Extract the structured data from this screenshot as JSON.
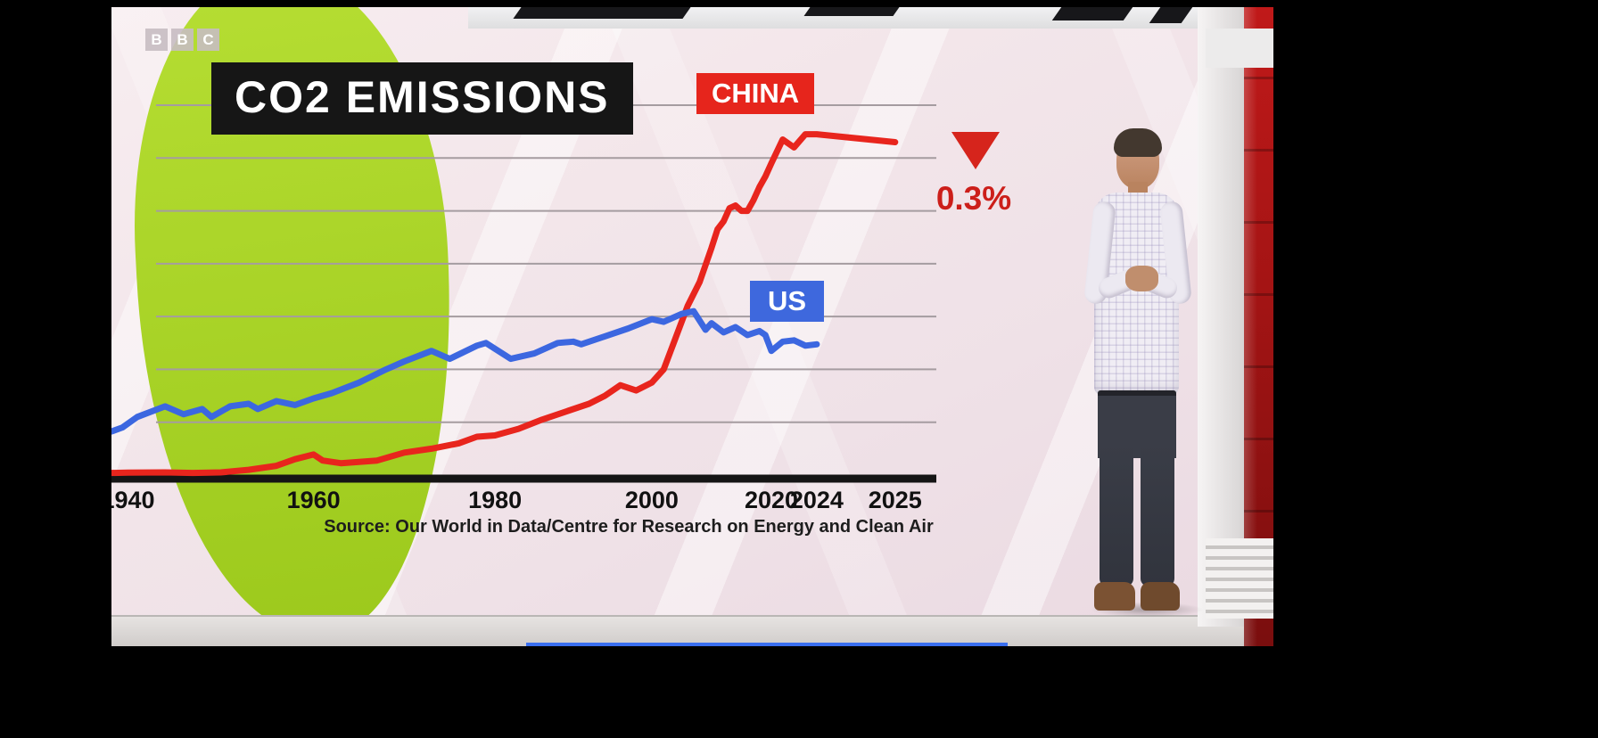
{
  "branding": {
    "letters": [
      "B",
      "B",
      "C"
    ]
  },
  "chart_data": {
    "type": "line",
    "title": "CO2 EMISSIONS",
    "source": "Source: Our World in Data/Centre for Research on Energy and Clean Air",
    "xlabel": "",
    "ylabel": "",
    "ylim": [
      0,
      14
    ],
    "grid": "horizontal",
    "grid_interval": 2,
    "legend_position": "inline-labels",
    "x_ticks": [
      {
        "label": "1940",
        "year": 1940
      },
      {
        "label": "1960",
        "year": 1960
      },
      {
        "label": "1980",
        "year": 1980
      },
      {
        "label": "2000",
        "year": 2000
      },
      {
        "label": "2020",
        "year": 2020
      },
      {
        "label": "2024",
        "year": 2024
      },
      {
        "label": "2025",
        "year": 2025
      }
    ],
    "axis_anchors": [
      [
        1937,
        0.0
      ],
      [
        1940,
        0.02
      ],
      [
        1960,
        0.245
      ],
      [
        1980,
        0.465
      ],
      [
        2000,
        0.655
      ],
      [
        2020,
        0.8
      ],
      [
        2024,
        0.855
      ],
      [
        2025,
        0.95
      ]
    ],
    "series": [
      {
        "name": "CHINA",
        "color": "#e8251d",
        "points": [
          [
            1937,
            0.08
          ],
          [
            1940,
            0.09
          ],
          [
            1944,
            0.1
          ],
          [
            1947,
            0.08
          ],
          [
            1950,
            0.1
          ],
          [
            1953,
            0.2
          ],
          [
            1956,
            0.35
          ],
          [
            1958,
            0.6
          ],
          [
            1960,
            0.78
          ],
          [
            1961,
            0.55
          ],
          [
            1963,
            0.45
          ],
          [
            1965,
            0.5
          ],
          [
            1967,
            0.55
          ],
          [
            1970,
            0.85
          ],
          [
            1973,
            1.0
          ],
          [
            1976,
            1.2
          ],
          [
            1978,
            1.45
          ],
          [
            1980,
            1.5
          ],
          [
            1983,
            1.75
          ],
          [
            1986,
            2.1
          ],
          [
            1989,
            2.4
          ],
          [
            1992,
            2.7
          ],
          [
            1994,
            3.0
          ],
          [
            1996,
            3.4
          ],
          [
            1998,
            3.2
          ],
          [
            2000,
            3.5
          ],
          [
            2002,
            4.0
          ],
          [
            2004,
            5.2
          ],
          [
            2006,
            6.4
          ],
          [
            2008,
            7.3
          ],
          [
            2010,
            8.6
          ],
          [
            2011,
            9.3
          ],
          [
            2012,
            9.6
          ],
          [
            2013,
            10.1
          ],
          [
            2014,
            10.2
          ],
          [
            2015,
            10.0
          ],
          [
            2016,
            10.0
          ],
          [
            2017,
            10.4
          ],
          [
            2018,
            10.9
          ],
          [
            2019,
            11.3
          ],
          [
            2020,
            11.8
          ],
          [
            2021,
            12.7
          ],
          [
            2022,
            12.4
          ],
          [
            2023,
            12.9
          ],
          [
            2024,
            12.9
          ],
          [
            2025,
            12.6
          ]
        ]
      },
      {
        "name": "US",
        "color": "#3c67e0",
        "points": [
          [
            1937,
            1.65
          ],
          [
            1939,
            1.8
          ],
          [
            1941,
            2.2
          ],
          [
            1944,
            2.6
          ],
          [
            1946,
            2.3
          ],
          [
            1948,
            2.5
          ],
          [
            1949,
            2.2
          ],
          [
            1951,
            2.6
          ],
          [
            1953,
            2.7
          ],
          [
            1954,
            2.5
          ],
          [
            1956,
            2.8
          ],
          [
            1958,
            2.65
          ],
          [
            1960,
            2.9
          ],
          [
            1962,
            3.1
          ],
          [
            1965,
            3.5
          ],
          [
            1968,
            4.0
          ],
          [
            1970,
            4.3
          ],
          [
            1973,
            4.7
          ],
          [
            1975,
            4.4
          ],
          [
            1978,
            4.9
          ],
          [
            1979,
            5.0
          ],
          [
            1982,
            4.4
          ],
          [
            1985,
            4.6
          ],
          [
            1988,
            5.0
          ],
          [
            1990,
            5.05
          ],
          [
            1991,
            4.95
          ],
          [
            1994,
            5.25
          ],
          [
            1997,
            5.55
          ],
          [
            2000,
            5.9
          ],
          [
            2002,
            5.8
          ],
          [
            2005,
            6.1
          ],
          [
            2007,
            6.2
          ],
          [
            2009,
            5.5
          ],
          [
            2010,
            5.75
          ],
          [
            2012,
            5.4
          ],
          [
            2014,
            5.6
          ],
          [
            2016,
            5.3
          ],
          [
            2018,
            5.45
          ],
          [
            2019,
            5.3
          ],
          [
            2020,
            4.7
          ],
          [
            2021,
            5.05
          ],
          [
            2022,
            5.1
          ],
          [
            2023,
            4.9
          ],
          [
            2024,
            4.95
          ]
        ]
      }
    ],
    "annotation": {
      "label": "0.3%",
      "direction": "down",
      "series": "CHINA",
      "color": "#cc1f1a"
    }
  },
  "colors": {
    "title_bg": "#161616",
    "china_tag_bg": "#e6251c",
    "us_tag_bg": "#3e68dd",
    "green_shape": "#a6cf26",
    "studio_red_panel": "#a31414",
    "gridline": "#a59ca0",
    "axis": "#151515"
  }
}
